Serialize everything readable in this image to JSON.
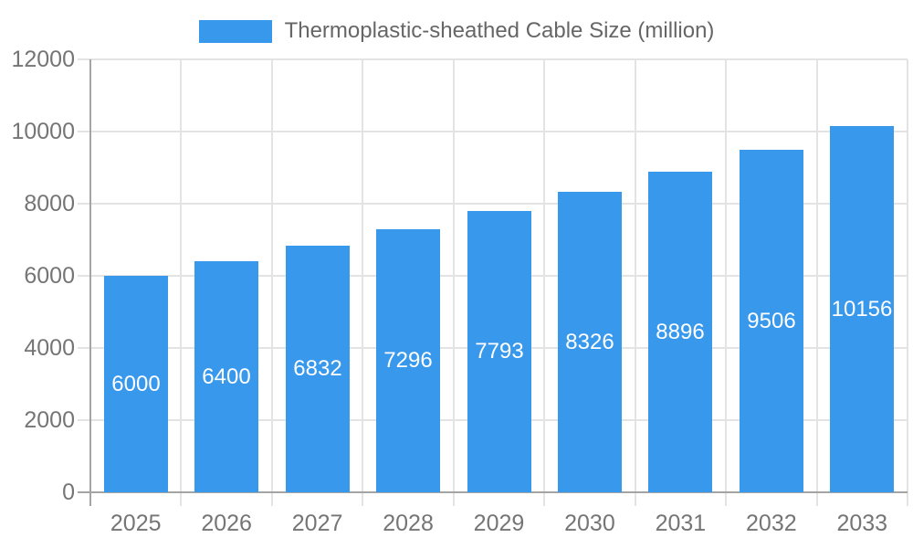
{
  "chart_data": {
    "type": "bar",
    "title": "Thermoplastic-sheathed Cable Size (million)",
    "categories": [
      "2025",
      "2026",
      "2027",
      "2028",
      "2029",
      "2030",
      "2031",
      "2032",
      "2033"
    ],
    "values": [
      6000,
      6400,
      6832,
      7296,
      7793,
      8326,
      8896,
      9506,
      10156
    ],
    "xlabel": "",
    "ylabel": "",
    "ylim": [
      0,
      12000
    ],
    "ytick_step": 2000,
    "yticks": [
      0,
      2000,
      4000,
      6000,
      8000,
      10000,
      12000
    ],
    "grid": true,
    "legend_position": "top-center",
    "legend": [
      {
        "label": "Thermoplastic-sheathed Cable Size (million)",
        "color": "#3898EC"
      }
    ],
    "value_labels": "centered-inside-bars",
    "colors": {
      "bar": "#3898EC",
      "value_label": "#ffffff",
      "axis_label": "#757575",
      "legend_text": "#666666",
      "gridline": "#e3e3e3",
      "axis_line": "#a4a4a4",
      "background": "#ffffff"
    }
  }
}
